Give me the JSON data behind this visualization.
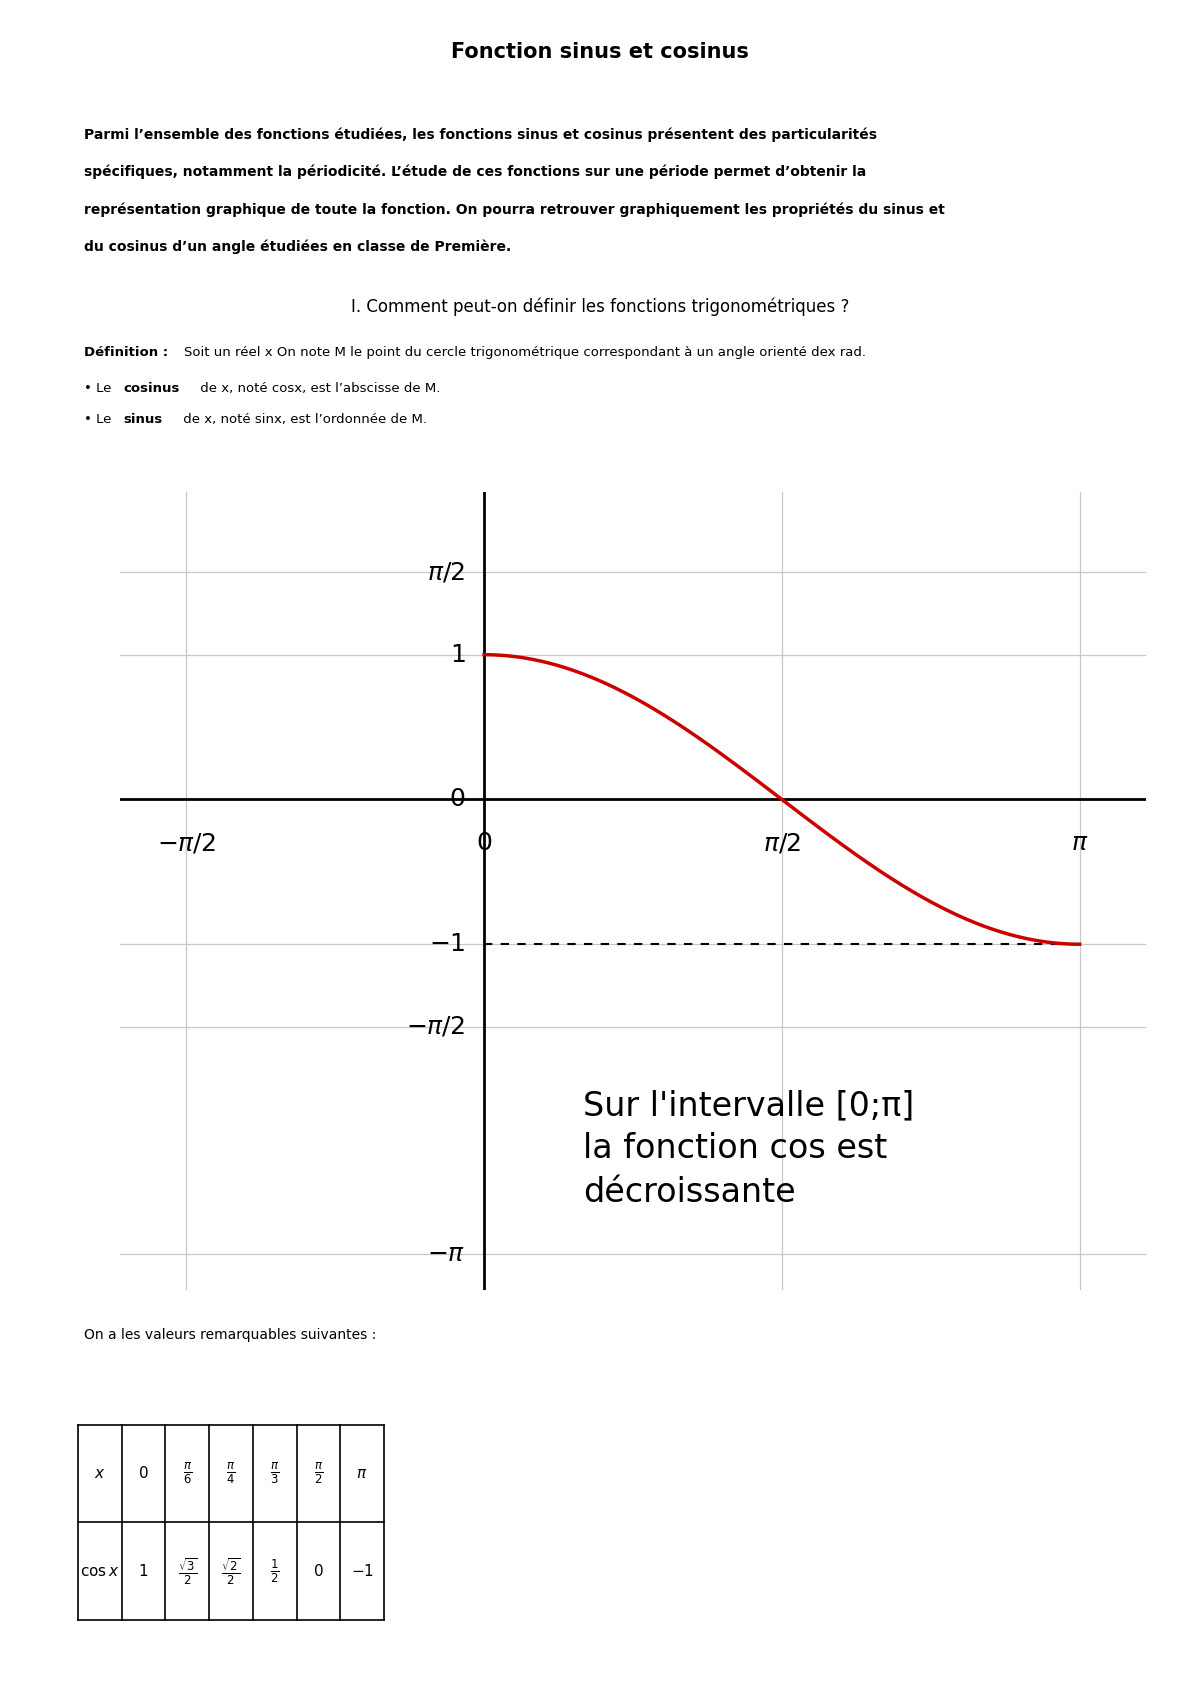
{
  "title": "Fonction sinus et cosinus",
  "bg_color": "#ffffff",
  "text_color": "#000000",
  "paragraph_lines": [
    "Parmi l’ensemble des fonctions étudiées, les fonctions sinus et cosinus présentent des particularités",
    "spécifiques, notamment la périodicité. L’étude de ces fonctions sur une période permet d’obtenir la",
    "représentation graphique de toute la fonction. On pourra retrouver graphiquement les propriétés du sinus et",
    "du cosinus d’un angle étudiées en classe de Première."
  ],
  "section_title": "I. Comment peut-on définir les fonctions trigonométriques ?",
  "definition_bold": "Définition :",
  "definition_text": "Soit un réel x On note M le point du cercle trigonométrique correspondant à un angle orienté dex rad.",
  "annotation_text": "Sur l'intervalle [0;π]\nla fonction cos est\ndécroissante",
  "bottom_text": "On a les valeurs remarquables suivantes :",
  "curve_color": "#cc0000",
  "grid_color": "#c8c8c8",
  "axis_color": "#000000"
}
